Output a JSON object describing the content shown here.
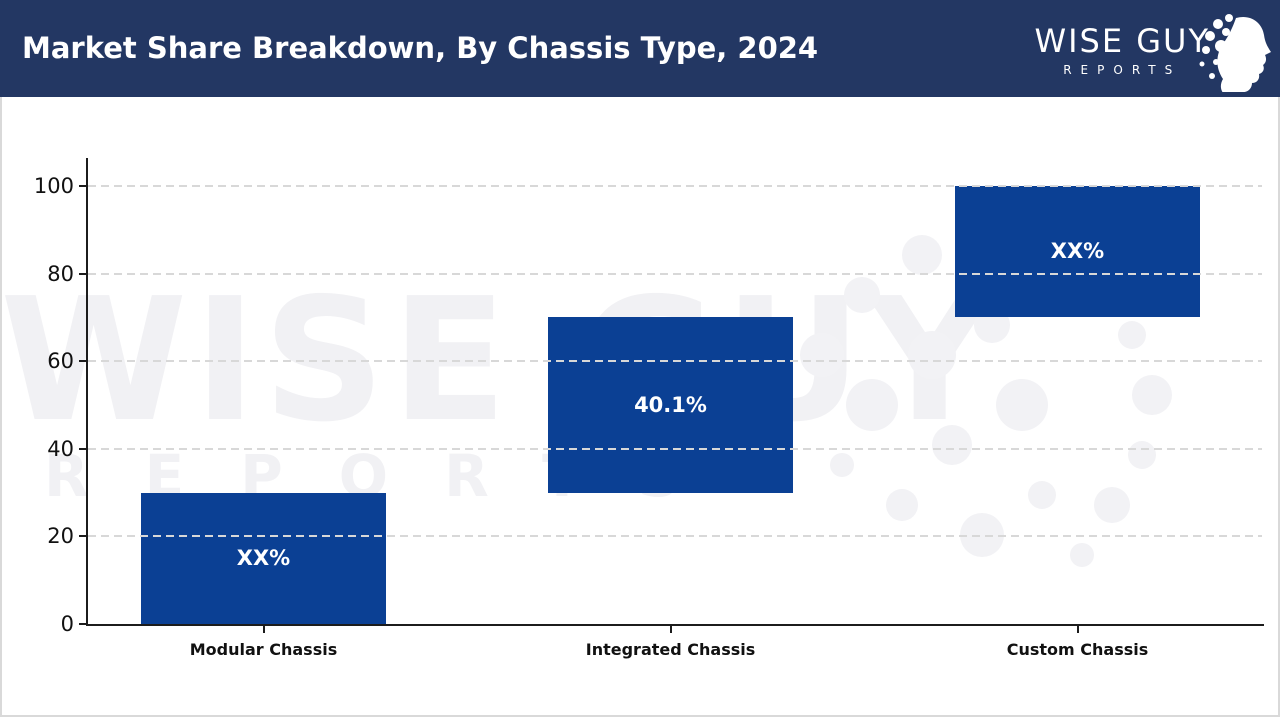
{
  "header": {
    "title": "Market Share Breakdown, By Chassis Type, 2024",
    "bg_color": "#233763",
    "logo": {
      "name": "WISE GUY",
      "subtitle": "REPORTS"
    }
  },
  "watermark": {
    "name": "WISE GUY",
    "subtitle": "REPORTS"
  },
  "chart_data": {
    "type": "bar",
    "variant": "floating-range-bars",
    "title": "Market Share Breakdown, By Chassis Type, 2024",
    "categories": [
      "Modular Chassis",
      "Integrated Chassis",
      "Custom Chassis"
    ],
    "bars": [
      {
        "category": "Modular Chassis",
        "from": 0,
        "to": 30,
        "label": "XX%"
      },
      {
        "category": "Integrated Chassis",
        "from": 30,
        "to": 70.1,
        "label": "40.1%"
      },
      {
        "category": "Custom Chassis",
        "from": 70.1,
        "to": 100,
        "label": "XX%"
      }
    ],
    "yticks": [
      0,
      20,
      40,
      60,
      80,
      100
    ],
    "ylim": [
      0,
      106
    ],
    "xlabel": "",
    "ylabel": "",
    "grid": "dashed-horizontal",
    "legend": "none",
    "bar_color": "#0b4094",
    "bar_label_color": "#ffffff",
    "grid_color": "#d8d8d8",
    "axis_color": "#1c1c1c"
  }
}
